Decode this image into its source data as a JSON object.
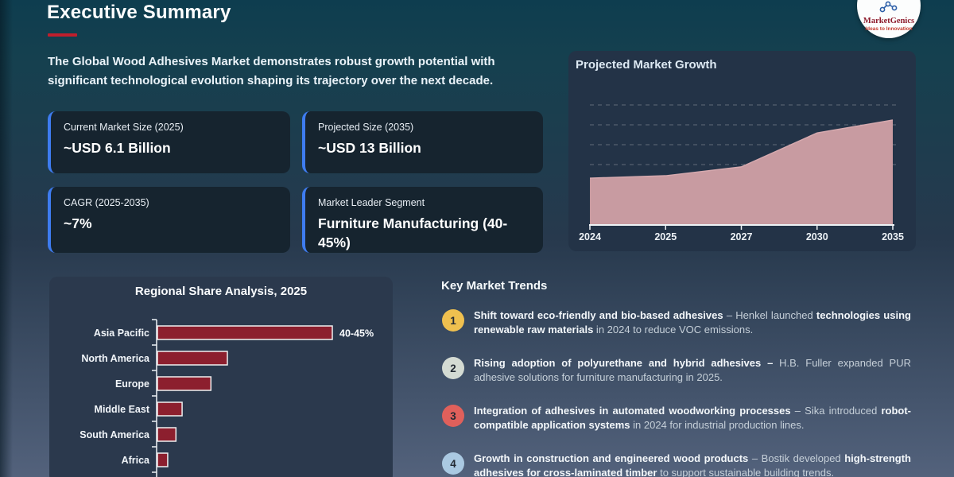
{
  "slide": {
    "title": "Executive Summary",
    "intro": "The Global Wood Adhesives Market demonstrates robust growth potential with significant technological evolution shaping its trajectory over the next decade."
  },
  "logo": {
    "name": "MarketGenics",
    "tagline": "Ideas to Innovation"
  },
  "colors": {
    "accent_red": "#c01e2c",
    "card_accent_blue": "#3e7cf0",
    "area_fill": "#c89ba1",
    "bar_fill": "#8c1f2e"
  },
  "stats": [
    {
      "label": "Current Market Size (2025)",
      "value": "~USD 6.1 Billion"
    },
    {
      "label": "Projected Size (2035)",
      "value": "~USD 13 Billion"
    },
    {
      "label": "CAGR (2025-2035)",
      "value": "~7%"
    },
    {
      "label": "Market Leader Segment",
      "value": "Furniture Manufacturing (40-45%)"
    }
  ],
  "trends": {
    "heading": "Key Market Trends",
    "items": [
      {
        "number": "1",
        "badge_color": "#efc04f",
        "segments": [
          {
            "bold": true,
            "text": "Shift toward eco-friendly and bio-based adhesives"
          },
          {
            "bold": false,
            "text": " – Henkel launched "
          },
          {
            "bold": true,
            "text": "technologies using renewable raw materials"
          },
          {
            "bold": false,
            "text": " in 2024 to reduce VOC emissions."
          }
        ]
      },
      {
        "number": "2",
        "badge_color": "#d4dbd3",
        "segments": [
          {
            "bold": true,
            "text": "Rising adoption of polyurethane and hybrid adhesives –"
          },
          {
            "bold": false,
            "text": " H.B. Fuller expanded PUR adhesive solutions for furniture manufacturing in 2025."
          }
        ]
      },
      {
        "number": "3",
        "badge_color": "#e0605b",
        "segments": [
          {
            "bold": true,
            "text": "Integration of adhesives in automated woodworking processes"
          },
          {
            "bold": false,
            "text": " – Sika introduced "
          },
          {
            "bold": true,
            "text": "robot-compatible application systems"
          },
          {
            "bold": false,
            "text": " in 2024 for industrial production lines."
          }
        ]
      },
      {
        "number": "4",
        "badge_color": "#aac9e2",
        "segments": [
          {
            "bold": true,
            "text": "Growth in construction and engineered wood products"
          },
          {
            "bold": false,
            "text": " – Bostik developed "
          },
          {
            "bold": true,
            "text": "high-strength adhesives for cross-laminated timber"
          },
          {
            "bold": false,
            "text": " to support sustainable building trends."
          }
        ]
      }
    ]
  },
  "chart_data": [
    {
      "type": "area",
      "title": "Projected Market Growth",
      "x": [
        "2024",
        "2025",
        "2027",
        "2030",
        "2035"
      ],
      "values": [
        5.8,
        6.1,
        7.2,
        11.4,
        13
      ],
      "unit": "USD Billion",
      "xlabel": "",
      "ylabel": "",
      "ylim": [
        0,
        13
      ],
      "grid": "horizontal-dashed",
      "legend": "none"
    },
    {
      "type": "bar",
      "orientation": "horizontal",
      "title": "Regional Share Analysis, 2025",
      "categories": [
        "Asia Pacific",
        "North America",
        "Europe",
        "Middle East",
        "South America",
        "Africa"
      ],
      "values": [
        42.5,
        17,
        13,
        6,
        4.5,
        2.5
      ],
      "unit": "percent share",
      "data_labels": [
        "40-45%",
        "",
        "",
        "",
        "",
        ""
      ],
      "xlim": [
        0,
        45
      ],
      "grid": "off",
      "legend": "none"
    }
  ]
}
